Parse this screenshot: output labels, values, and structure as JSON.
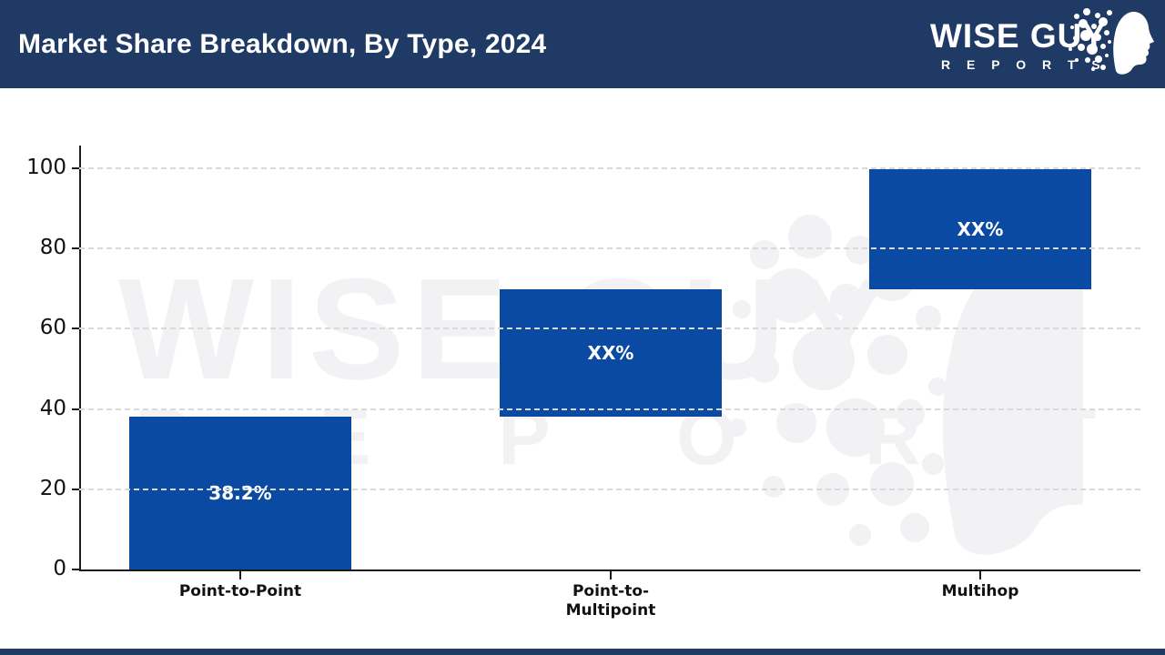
{
  "header": {
    "title": "Market Share Breakdown, By Type, 2024",
    "logo": {
      "line1": "WISE GUY",
      "line2": "R E P O R T S"
    }
  },
  "watermark": {
    "line1": "WISE GUY",
    "line2": "R E P O R T S"
  },
  "footer": {},
  "colors": {
    "header_bg": "#203A66",
    "bar": "#0B4AA2",
    "axis": "#1a1a1a",
    "grid": "#d9d9d9",
    "watermark": "#f2f2f4",
    "title_text": "#ffffff",
    "bar_label_text": "#ffffff"
  },
  "chart_data": {
    "type": "bar",
    "variant": "floating-segment (waterfall style)",
    "title": "Market Share Breakdown, By Type, 2024",
    "categories": [
      [
        "Point-to-Point"
      ],
      [
        "Point-to-",
        "Multipoint"
      ],
      [
        "Multihop"
      ]
    ],
    "segments": [
      {
        "category": "Point-to-Point",
        "start": 0,
        "end": 38.2,
        "label": "38.2%"
      },
      {
        "category": "Point-to-Multipoint",
        "start": 38.2,
        "end": 69.8,
        "label": "XX%"
      },
      {
        "category": "Multihop",
        "start": 69.8,
        "end": 99.8,
        "label": "XX%"
      }
    ],
    "yticks": [
      0,
      20,
      40,
      60,
      80,
      100
    ],
    "ylim": [
      0,
      105
    ],
    "xlabel": "",
    "ylabel": "",
    "grid": "horizontal dashed, drawn over bars",
    "legend": "none"
  }
}
